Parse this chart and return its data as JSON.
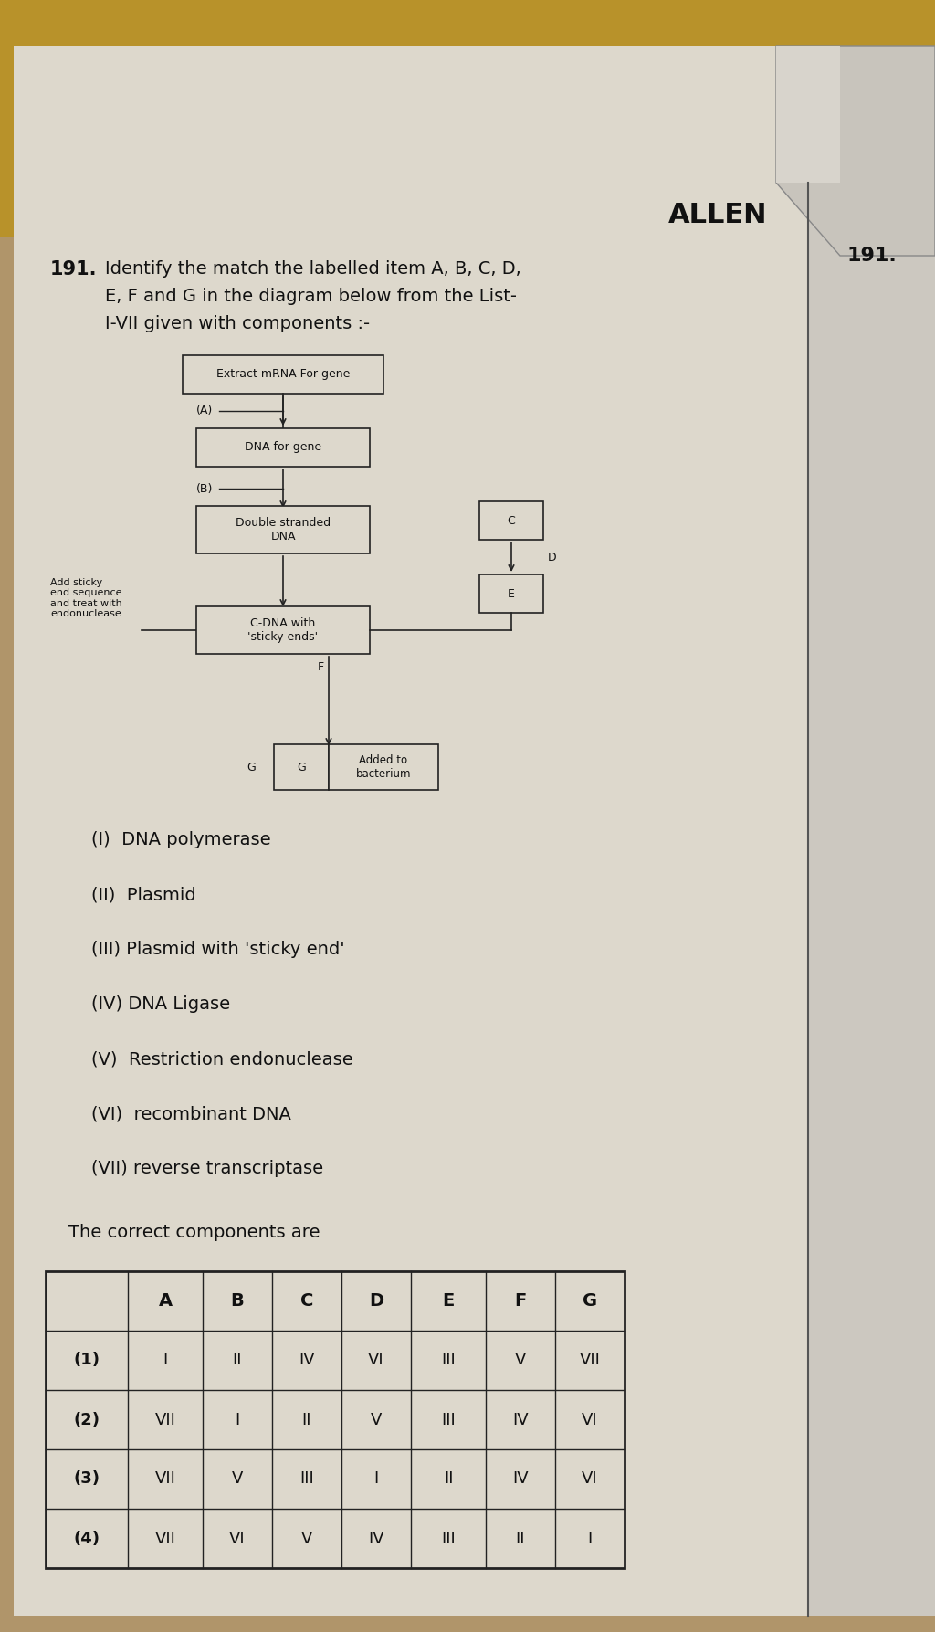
{
  "bg_top_color": "#b8922a",
  "bg_page_color": "#ddd8cc",
  "right_strip_color": "#c8c4bc",
  "line_color": "#222222",
  "text_color": "#111111",
  "title_brand": "ALLEN",
  "q_number": "191.",
  "question_line1": "Identify the match the labelled item A, B, C, D,",
  "question_line2": "E, F and G in the diagram below from the List-",
  "question_line3": "I-VII given with components :-",
  "diagram_box_top": "Extract mRNA For gene",
  "diagram_label_A": "(A)",
  "diagram_box_1": "DNA for gene",
  "diagram_label_B": "(B)",
  "diagram_box_2a": "Double stranded",
  "diagram_box_2b": "DNA",
  "diagram_box_C": "C",
  "diagram_label_D": "D",
  "diagram_box_E": "E",
  "diagram_side_text": "Add sticky\nend sequence\nand treat with\nendonuclease",
  "diagram_box_3a": "C-DNA with",
  "diagram_box_3b": "'sticky ends'",
  "diagram_label_F": "F",
  "diagram_label_G": "G",
  "diagram_box_4a": "Added to",
  "diagram_box_4b": "bacterium",
  "components": [
    "(I)  DNA polymerase",
    "(II)  Plasmid",
    "(III) Plasmid with 'sticky end'",
    "(IV) DNA Ligase",
    "(V)  Restriction endonuclease",
    "(VI)  recombinant DNA",
    "(VII) reverse transcriptase"
  ],
  "table_title": "The correct components are",
  "table_headers": [
    "",
    "A",
    "B",
    "C",
    "D",
    "E",
    "F",
    "G"
  ],
  "table_rows": [
    [
      "(1)",
      "I",
      "II",
      "IV",
      "VI",
      "III",
      "V",
      "VII"
    ],
    [
      "(2)",
      "VII",
      "I",
      "II",
      "V",
      "III",
      "IV",
      "VI"
    ],
    [
      "(3)",
      "VII",
      "V",
      "III",
      "I",
      "II",
      "IV",
      "VI"
    ],
    [
      "(4)",
      "VII",
      "VI",
      "V",
      "IV",
      "III",
      "II",
      "I"
    ]
  ]
}
